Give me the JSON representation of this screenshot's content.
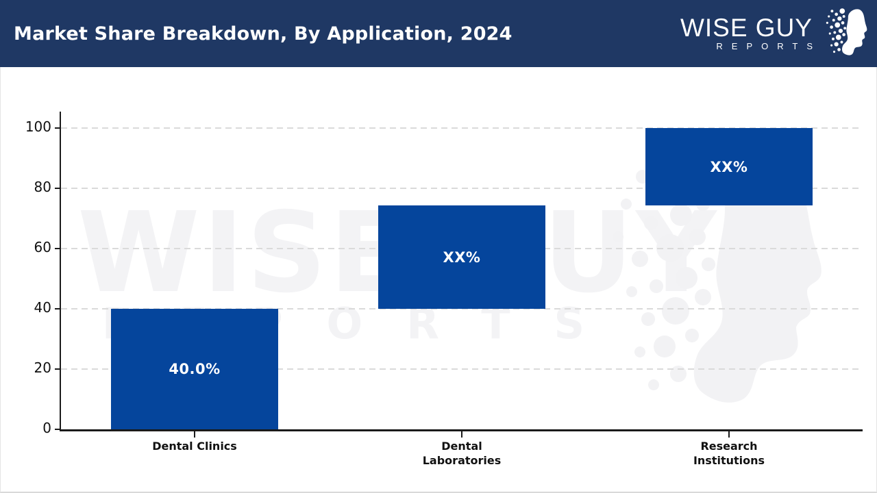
{
  "header": {
    "title": "Market Share Breakdown, By Application, 2024",
    "bg_color": "#1f3864",
    "logo": {
      "line1": "WISE GUY",
      "line2": "REPORTS"
    }
  },
  "watermark": {
    "line1": "WISE GUY",
    "line2": "REPORTS"
  },
  "chart_data": {
    "type": "bar",
    "subtype": "floating-waterfall",
    "title": "Market Share Breakdown, By Application, 2024",
    "categories": [
      "Dental Clinics",
      "Dental\nLaboratories",
      "Research\nInstitutions"
    ],
    "series": [
      {
        "name": "Market Share (%)",
        "segments": [
          {
            "category": "Dental Clinics",
            "start": 0,
            "end": 40,
            "label": "40.0%"
          },
          {
            "category": "Dental Laboratories",
            "start": 40,
            "end": 74.3,
            "label": "XX%"
          },
          {
            "category": "Research Institutions",
            "start": 74.3,
            "end": 100,
            "label": "XX%"
          }
        ]
      }
    ],
    "xlabel": "",
    "ylabel": "",
    "ylim": [
      0,
      100
    ],
    "yticks": [
      0,
      20,
      40,
      60,
      80,
      100
    ],
    "grid": "horizontal-dashed",
    "legend": "none",
    "bar_color": "#05459c",
    "bar_label_color": "#ffffff",
    "axis_color": "#1a1a1a",
    "gridline_color": "#dadada"
  }
}
